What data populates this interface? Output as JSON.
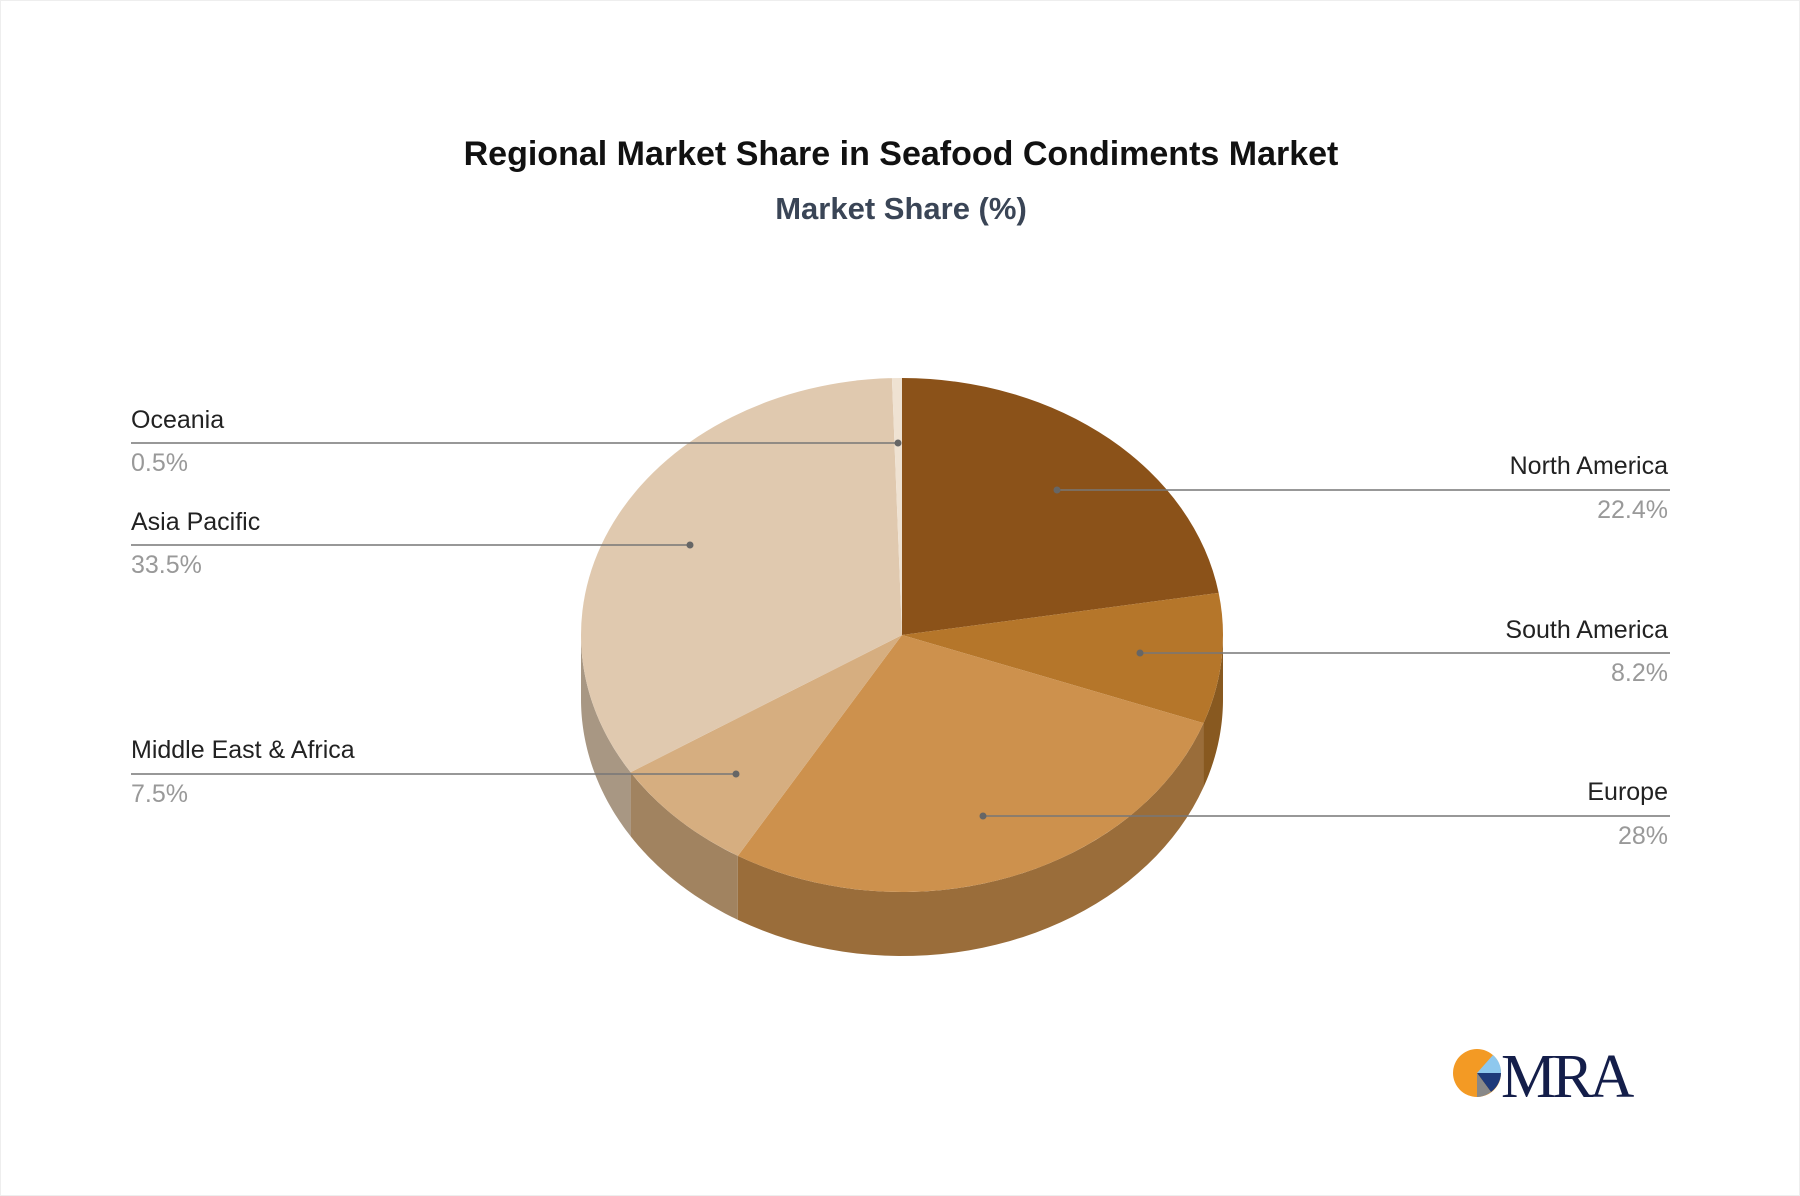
{
  "chart_data": {
    "type": "pie",
    "title": "Regional Market Share in Seafood Condiments Market",
    "subtitle": "Market Share (%)",
    "three_d": true,
    "start": "top, clockwise",
    "slices": [
      {
        "name": "North America",
        "value": 22.4,
        "label": "22.4%",
        "color": "#8B5219"
      },
      {
        "name": "South America",
        "value": 8.2,
        "label": "8.2%",
        "color": "#B5762A"
      },
      {
        "name": "Europe",
        "value": 28,
        "label": "28%",
        "color": "#CD914D"
      },
      {
        "name": "Middle East & Africa",
        "value": 7.5,
        "label": "7.5%",
        "color": "#D6AE80"
      },
      {
        "name": "Asia Pacific",
        "value": 33.5,
        "label": "33.5%",
        "color": "#E0C9AF"
      },
      {
        "name": "Oceania",
        "value": 0.5,
        "label": "0.5%",
        "color": "#EFE2D2"
      }
    ]
  },
  "logo": {
    "text": "MRA"
  }
}
